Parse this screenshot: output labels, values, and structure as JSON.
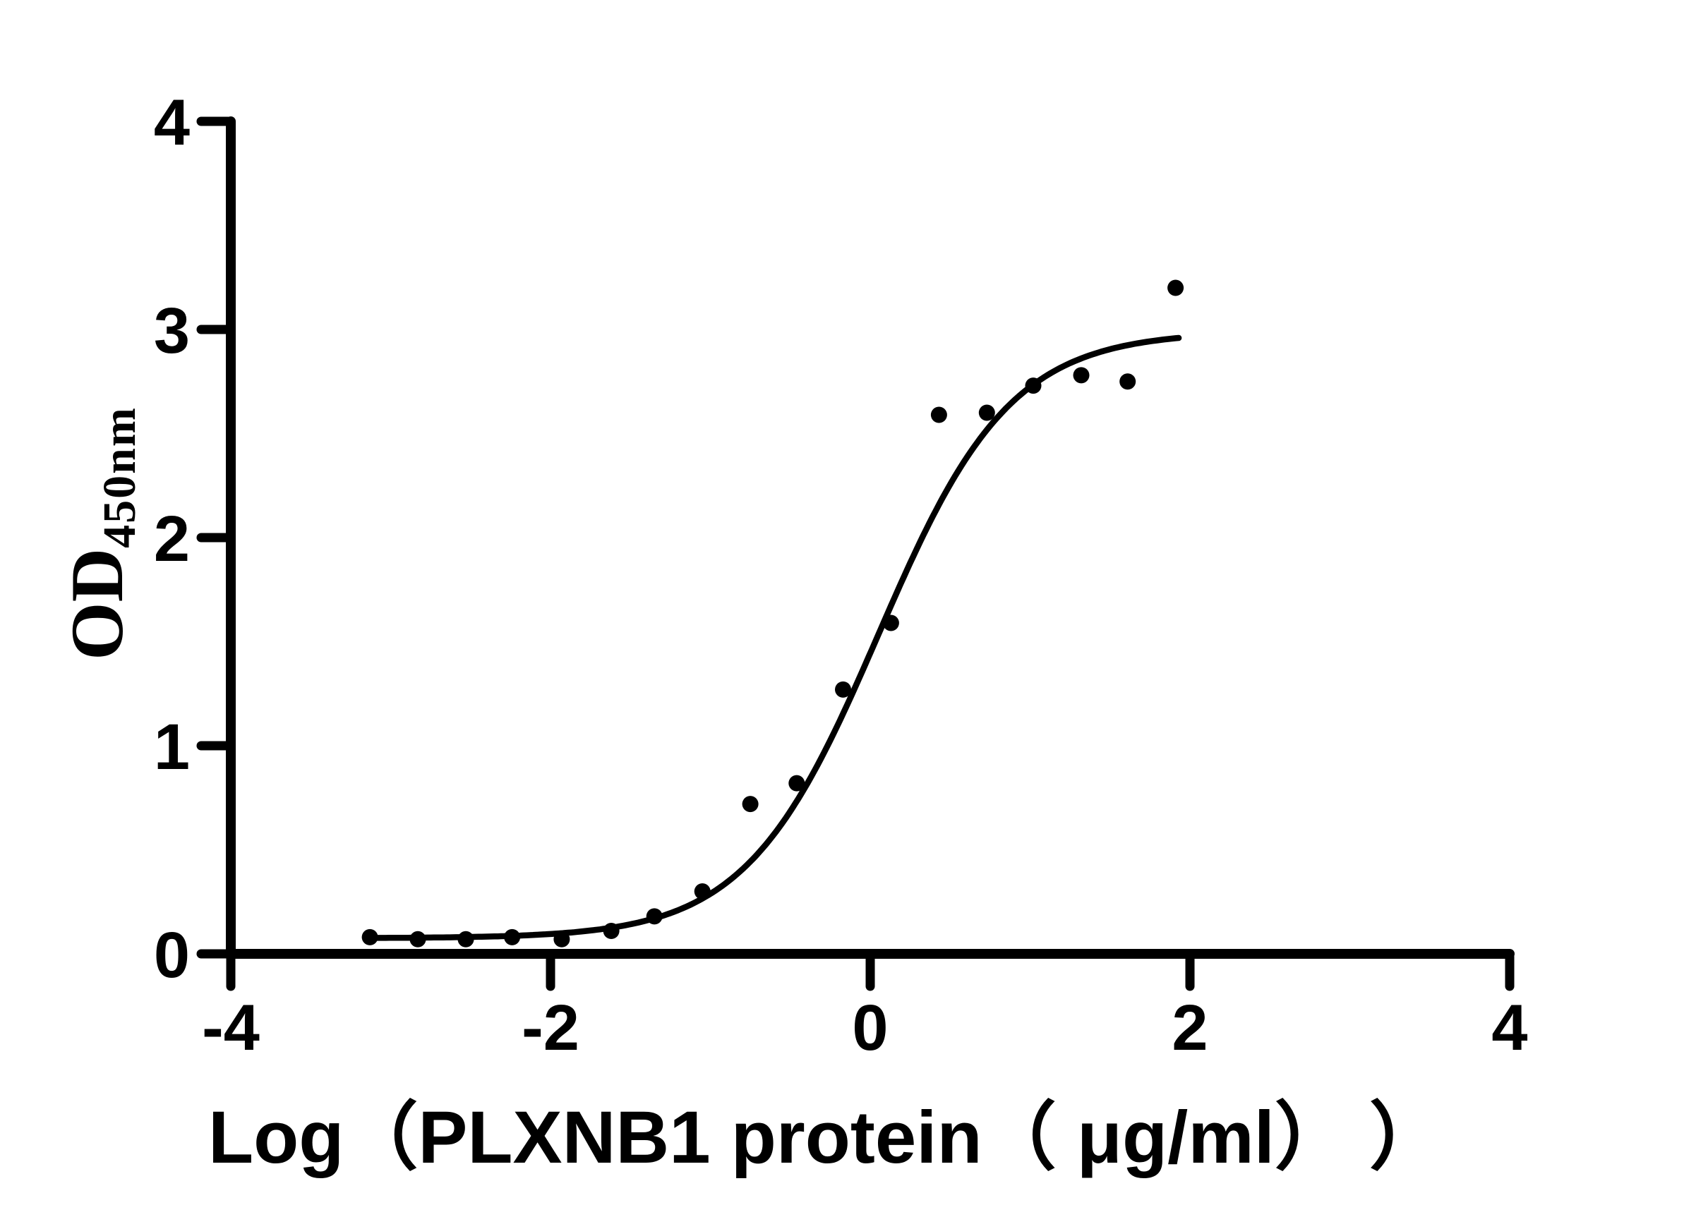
{
  "chart_data": {
    "type": "scatter",
    "title": "",
    "xlabel": "Log（PLXNB1 protein（ μg/ml） ）",
    "ylabel_main": "OD",
    "ylabel_sub": "450nm",
    "xlim": [
      -4,
      4
    ],
    "ylim": [
      0,
      4
    ],
    "grid": false,
    "legend": "none",
    "axis_color": "#000000",
    "point_color": "#000000",
    "curve_color": "#000000",
    "x_ticks": [
      -4,
      -2,
      0,
      2,
      4
    ],
    "x_tick_labels": [
      "-4",
      "-2",
      "0",
      "2",
      "4"
    ],
    "y_ticks": [
      0,
      1,
      2,
      3,
      4
    ],
    "y_tick_labels": [
      "0",
      "1",
      "2",
      "3",
      "4"
    ],
    "series": [
      {
        "marker": "filled-circle",
        "x": [
          -3.13,
          -2.83,
          -2.53,
          -2.24,
          -1.93,
          -1.62,
          -1.35,
          -1.05,
          -0.75,
          -0.46,
          -0.17,
          0.13,
          0.43,
          0.73,
          1.02,
          1.32,
          1.61,
          1.91
        ],
        "y": [
          0.08,
          0.07,
          0.07,
          0.08,
          0.07,
          0.11,
          0.18,
          0.3,
          0.72,
          0.82,
          1.27,
          1.59,
          2.59,
          2.6,
          2.73,
          2.78,
          2.75,
          3.2
        ]
      }
    ],
    "fit_curve": {
      "model": "four-parameter-logistic",
      "bottom": 0.075,
      "top": 2.99,
      "log_ec50": 0.05,
      "hill_slope": 1.05,
      "x_start": -3.13,
      "x_end": 1.93
    }
  }
}
